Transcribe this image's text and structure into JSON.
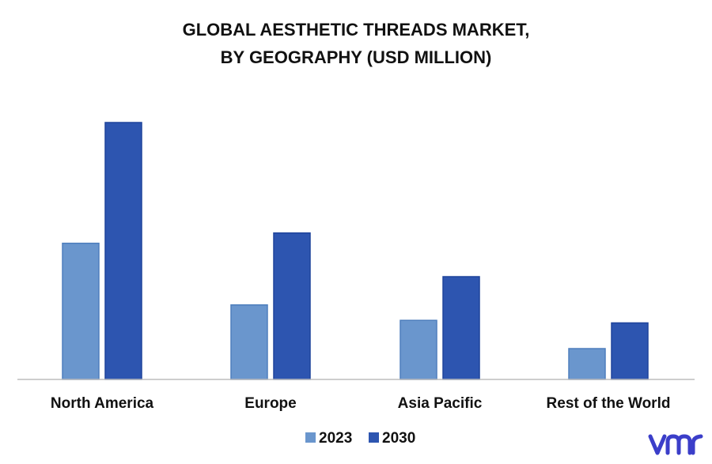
{
  "chart_data": {
    "type": "bar",
    "title_lines": [
      "GLOBAL AESTHETIC THREADS MARKET,",
      "BY GEOGRAPHY (USD MILLION)"
    ],
    "categories": [
      "North America",
      "Europe",
      "Asia Pacific",
      "Rest of the World"
    ],
    "series": [
      {
        "name": "2023",
        "values": [
          53,
          29,
          23,
          12
        ],
        "color": "#6a96cd"
      },
      {
        "name": "2030",
        "values": [
          100,
          57,
          40,
          22
        ],
        "color": "#2d55b0"
      }
    ],
    "ylim": [
      0,
      100
    ],
    "grid": false,
    "legend": "bottom-center",
    "xlabel": "",
    "ylabel": ""
  },
  "brand": {
    "logo_icon": "vmr-logo-icon",
    "color": "#3b3ec9"
  }
}
